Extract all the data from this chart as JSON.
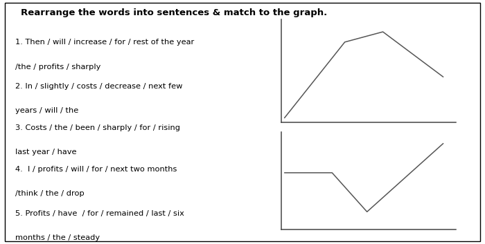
{
  "title": "Rearrange the words into sentences & match to the graph.",
  "items": [
    {
      "number": "1.",
      "line1": "Then / will / increase / for / rest of the year",
      "line2": "/the / profits / sharply"
    },
    {
      "number": "2.",
      "line1": "In / slightly / costs / decrease / next few",
      "line2": "years / will / the"
    },
    {
      "number": "3.",
      "line1": "Costs / the / been / sharply / for / rising",
      "line2": "last year / have"
    },
    {
      "number": "4.",
      "line1": " I / profits / will / for / next two months",
      "line2": "/think / the / drop"
    },
    {
      "number": "5.",
      "line1": "Profits / have  / for / remained / last / six",
      "line2": "months / the / steady"
    }
  ],
  "graph1": {
    "x": [
      0.0,
      0.38,
      0.62,
      1.0
    ],
    "y": [
      0.04,
      0.78,
      0.88,
      0.44
    ]
  },
  "graph2": {
    "x": [
      0.0,
      0.3,
      0.52,
      1.0
    ],
    "y": [
      0.58,
      0.58,
      0.18,
      0.88
    ]
  },
  "bg_color": "#ffffff",
  "line_color": "#555555",
  "axis_color": "#444444",
  "text_color": "#000000",
  "title_fontsize": 9.5,
  "body_fontsize": 8.2,
  "border_color": "#000000"
}
